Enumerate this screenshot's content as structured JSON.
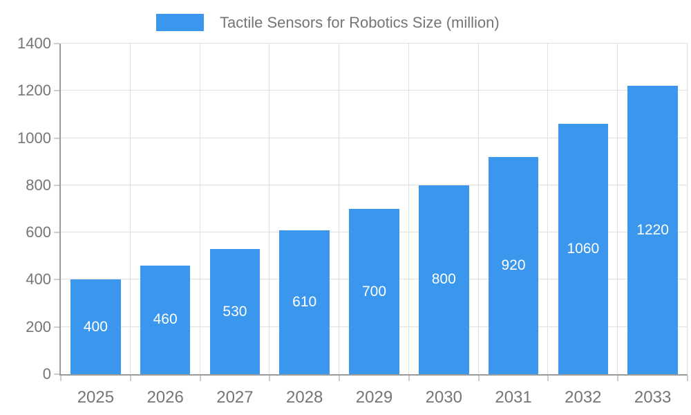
{
  "legend": {
    "label": "Tactile Sensors for Robotics Size (million)"
  },
  "chart_data": {
    "type": "bar",
    "title": "Tactile Sensors for Robotics Size (million)",
    "categories": [
      "2025",
      "2026",
      "2027",
      "2028",
      "2029",
      "2030",
      "2031",
      "2032",
      "2033"
    ],
    "values": [
      400,
      460,
      530,
      610,
      700,
      800,
      920,
      1060,
      1220
    ],
    "value_labels": [
      "400",
      "460",
      "530",
      "610",
      "700",
      "800",
      "920",
      "1060",
      "1220"
    ],
    "xlabel": "",
    "ylabel": "",
    "ylim": [
      0,
      1400
    ],
    "yticks": [
      0,
      200,
      400,
      600,
      800,
      1000,
      1200,
      1400
    ],
    "ytick_labels": [
      "0",
      "200",
      "400",
      "600",
      "800",
      "1000",
      "1200",
      "1400"
    ],
    "grid": true,
    "legend_position": "top",
    "colors": {
      "bar": "#3B97ED",
      "bar_label_text": "#FFFFFF",
      "axis_text": "#757575",
      "grid_line": "#E0E0E0",
      "axis_line": "#9A9A9A",
      "tick": "#CCCCCC",
      "background": "#FFFFFF"
    }
  }
}
